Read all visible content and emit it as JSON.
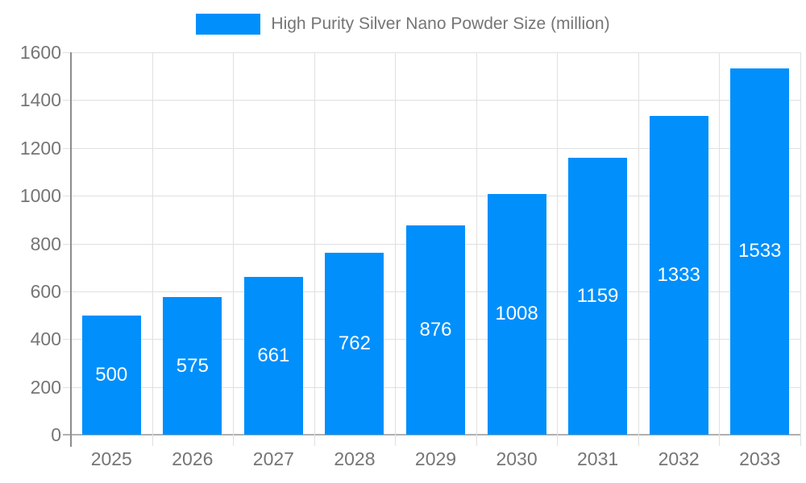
{
  "chart_data": {
    "type": "bar",
    "title": "High Purity Silver Nano Powder Size (million)",
    "categories": [
      "2025",
      "2026",
      "2027",
      "2028",
      "2029",
      "2030",
      "2031",
      "2032",
      "2033"
    ],
    "values": [
      500,
      575,
      661,
      762,
      876,
      1008,
      1159,
      1333,
      1533
    ],
    "value_labels": [
      "500",
      "575",
      "661",
      "762",
      "876",
      "1008",
      "1159",
      "1333",
      "1533"
    ],
    "xlabel": "",
    "ylabel": "",
    "ylim": [
      0,
      1600
    ],
    "ytick_step": 200,
    "yticks": [
      0,
      200,
      400,
      600,
      800,
      1000,
      1200,
      1400,
      1600
    ],
    "ytick_labels": [
      "0",
      "200",
      "400",
      "600",
      "800",
      "1000",
      "1200",
      "1400",
      "1600"
    ],
    "grid": true,
    "legend_position": "top-center",
    "colors": {
      "bar": "#008FFB",
      "value_label": "#ffffff",
      "axis_text": "#757575",
      "gridline": "#e0e0e0",
      "baseline": "#b0b0b0",
      "axis_line": "#8c8c8c",
      "background": "#ffffff"
    }
  }
}
